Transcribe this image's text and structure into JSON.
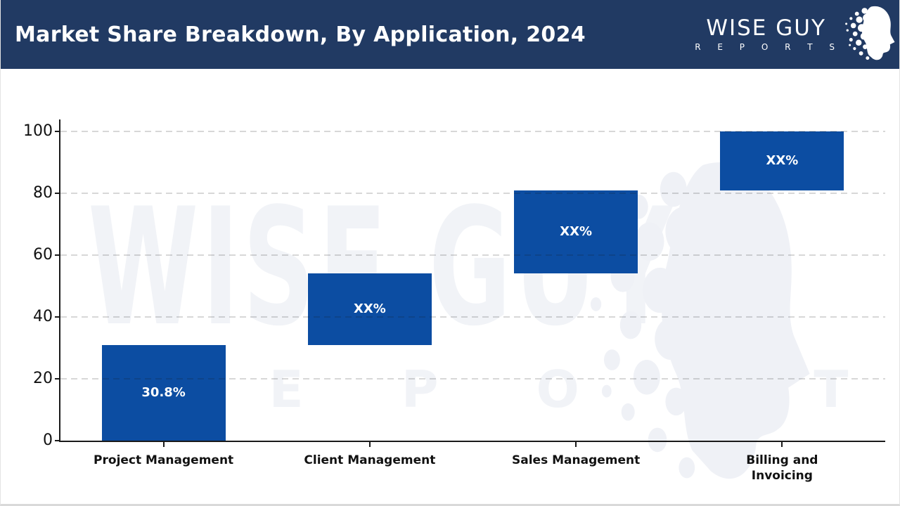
{
  "header": {
    "title": "Market Share Breakdown, By Application, 2024",
    "bg_color": "#213a63",
    "logo": {
      "line1": "WISE GUY",
      "line2": "R E P O R T S"
    }
  },
  "watermark": {
    "line1": "WISE GUY",
    "line2": "R E P O R T S"
  },
  "chart_data": {
    "type": "bar",
    "subtype": "floating-waterfall",
    "title": "Market Share Breakdown, By Application, 2024",
    "categories": [
      "Project Management",
      "Client Management",
      "Sales Management",
      "Billing and\nInvoicing"
    ],
    "segments": [
      {
        "category": "Project Management",
        "start": 0,
        "end": 30.8,
        "label": "30.8%"
      },
      {
        "category": "Client Management",
        "start": 30.8,
        "end": 54,
        "label": "XX%"
      },
      {
        "category": "Sales Management",
        "start": 54,
        "end": 81,
        "label": "XX%"
      },
      {
        "category": "Billing and Invoicing",
        "start": 81,
        "end": 100,
        "label": "XX%"
      }
    ],
    "xlabel": "",
    "ylabel": "",
    "yticks": [
      0,
      20,
      40,
      60,
      80,
      100
    ],
    "ylim": [
      0,
      104.5
    ],
    "grid": "horizontal-dashed",
    "legend_position": "none",
    "colors": {
      "bar": "#0c4da2",
      "bar_label": "#ffffff",
      "axis": "#1a1a1a",
      "tick_label": "#111111"
    }
  }
}
